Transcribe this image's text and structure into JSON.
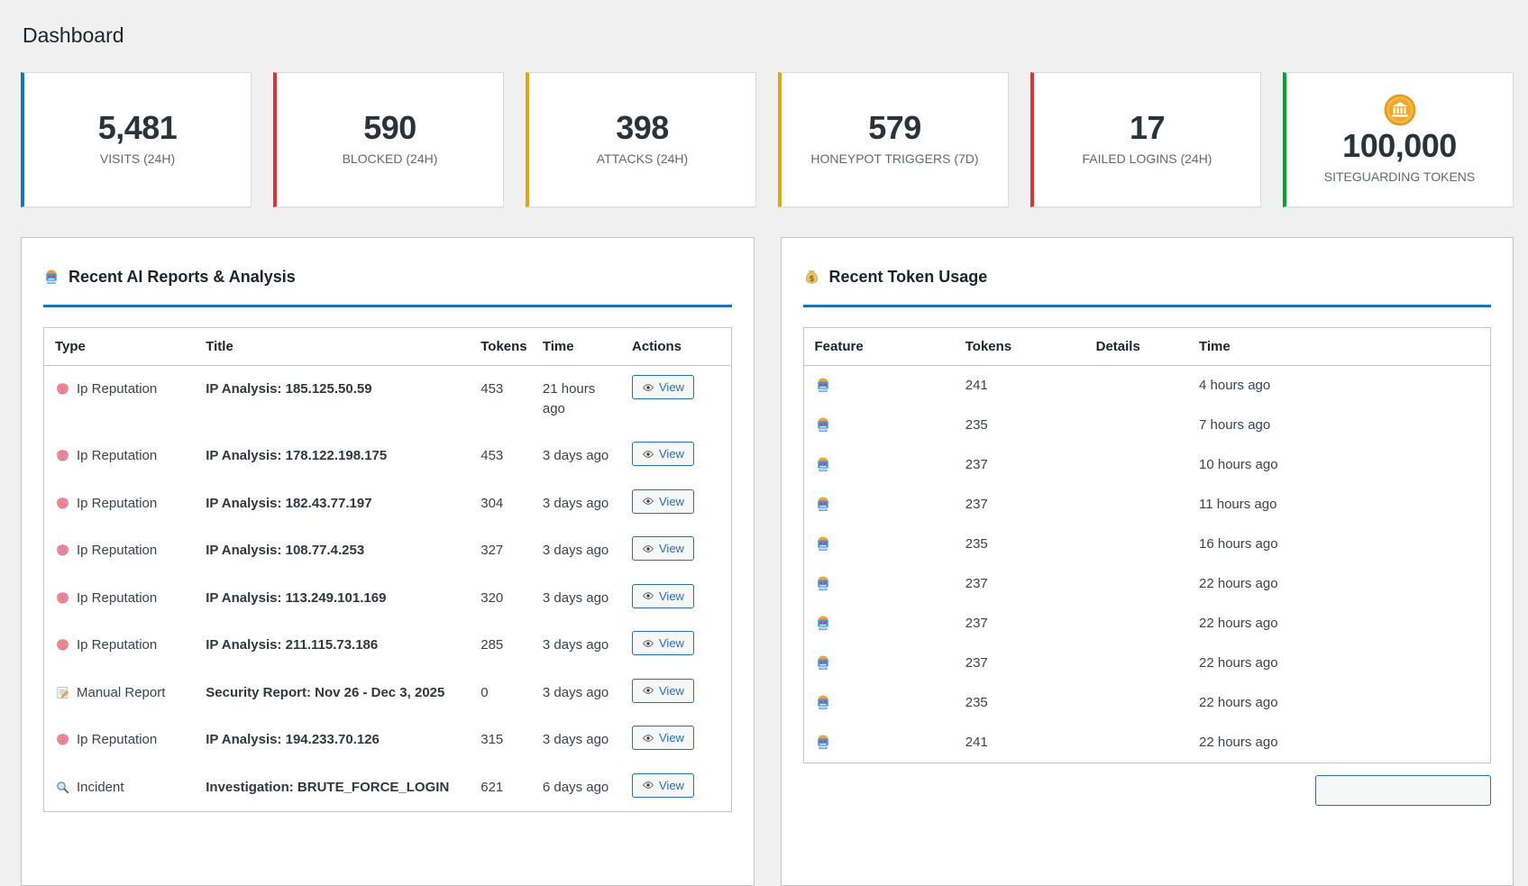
{
  "page": {
    "title": "Dashboard"
  },
  "colors": {
    "accent_blue": "#2271b1",
    "accent_red": "#d63638",
    "accent_yellow": "#dba617",
    "accent_green": "#00a32a",
    "panel_underline": "#2271b1",
    "background": "#f0f0f1"
  },
  "stats": [
    {
      "value": "5,481",
      "label": "VISITS (24H)",
      "accent": "#2271b1"
    },
    {
      "value": "590",
      "label": "BLOCKED (24H)",
      "accent": "#d63638"
    },
    {
      "value": "398",
      "label": "ATTACKS (24H)",
      "accent": "#dba617"
    },
    {
      "value": "579",
      "label": "HONEYPOT TRIGGERS (7D)",
      "accent": "#dba617"
    },
    {
      "value": "17",
      "label": "FAILED LOGINS (24H)",
      "accent": "#d63638"
    },
    {
      "value": "100,000",
      "label": "SITEGUARDING TOKENS",
      "accent": "#00a32a",
      "icon": "coin-icon"
    }
  ],
  "reports_panel": {
    "icon": "robot-icon",
    "title": "Recent AI Reports & Analysis",
    "columns": {
      "type": "Type",
      "title": "Title",
      "tokens": "Tokens",
      "time": "Time",
      "actions": "Actions"
    },
    "view_label": "View",
    "rows": [
      {
        "type_icon": "brain-icon",
        "type": "Ip Reputation",
        "title": "IP Analysis: 185.125.50.59",
        "tokens": "453",
        "time": "21 hours ago"
      },
      {
        "type_icon": "brain-icon",
        "type": "Ip Reputation",
        "title": "IP Analysis: 178.122.198.175",
        "tokens": "453",
        "time": "3 days ago"
      },
      {
        "type_icon": "brain-icon",
        "type": "Ip Reputation",
        "title": "IP Analysis: 182.43.77.197",
        "tokens": "304",
        "time": "3 days ago"
      },
      {
        "type_icon": "brain-icon",
        "type": "Ip Reputation",
        "title": "IP Analysis: 108.77.4.253",
        "tokens": "327",
        "time": "3 days ago"
      },
      {
        "type_icon": "brain-icon",
        "type": "Ip Reputation",
        "title": "IP Analysis: 113.249.101.169",
        "tokens": "320",
        "time": "3 days ago"
      },
      {
        "type_icon": "brain-icon",
        "type": "Ip Reputation",
        "title": "IP Analysis: 211.115.73.186",
        "tokens": "285",
        "time": "3 days ago"
      },
      {
        "type_icon": "memo-icon",
        "type": "Manual Report",
        "title": "Security Report: Nov 26 - Dec 3, 2025",
        "tokens": "0",
        "time": "3 days ago"
      },
      {
        "type_icon": "brain-icon",
        "type": "Ip Reputation",
        "title": "IP Analysis: 194.233.70.126",
        "tokens": "315",
        "time": "3 days ago"
      },
      {
        "type_icon": "magnifier-icon",
        "type": "Incident",
        "title": "Investigation: BRUTE_FORCE_LOGIN",
        "tokens": "621",
        "time": "6 days ago"
      }
    ]
  },
  "token_panel": {
    "icon": "moneybag-icon",
    "title": "Recent Token Usage",
    "columns": {
      "feature": "Feature",
      "tokens": "Tokens",
      "details": "Details",
      "time": "Time"
    },
    "rows": [
      {
        "feature_icon": "robot-icon",
        "tokens": "241",
        "details": "",
        "time": "4 hours ago"
      },
      {
        "feature_icon": "robot-icon",
        "tokens": "235",
        "details": "",
        "time": "7 hours ago"
      },
      {
        "feature_icon": "robot-icon",
        "tokens": "237",
        "details": "",
        "time": "10 hours ago"
      },
      {
        "feature_icon": "robot-icon",
        "tokens": "237",
        "details": "",
        "time": "11 hours ago"
      },
      {
        "feature_icon": "robot-icon",
        "tokens": "235",
        "details": "",
        "time": "16 hours ago"
      },
      {
        "feature_icon": "robot-icon",
        "tokens": "237",
        "details": "",
        "time": "22 hours ago"
      },
      {
        "feature_icon": "robot-icon",
        "tokens": "237",
        "details": "",
        "time": "22 hours ago"
      },
      {
        "feature_icon": "robot-icon",
        "tokens": "237",
        "details": "",
        "time": "22 hours ago"
      },
      {
        "feature_icon": "robot-icon",
        "tokens": "235",
        "details": "",
        "time": "22 hours ago"
      },
      {
        "feature_icon": "robot-icon",
        "tokens": "241",
        "details": "",
        "time": "22 hours ago"
      }
    ]
  }
}
